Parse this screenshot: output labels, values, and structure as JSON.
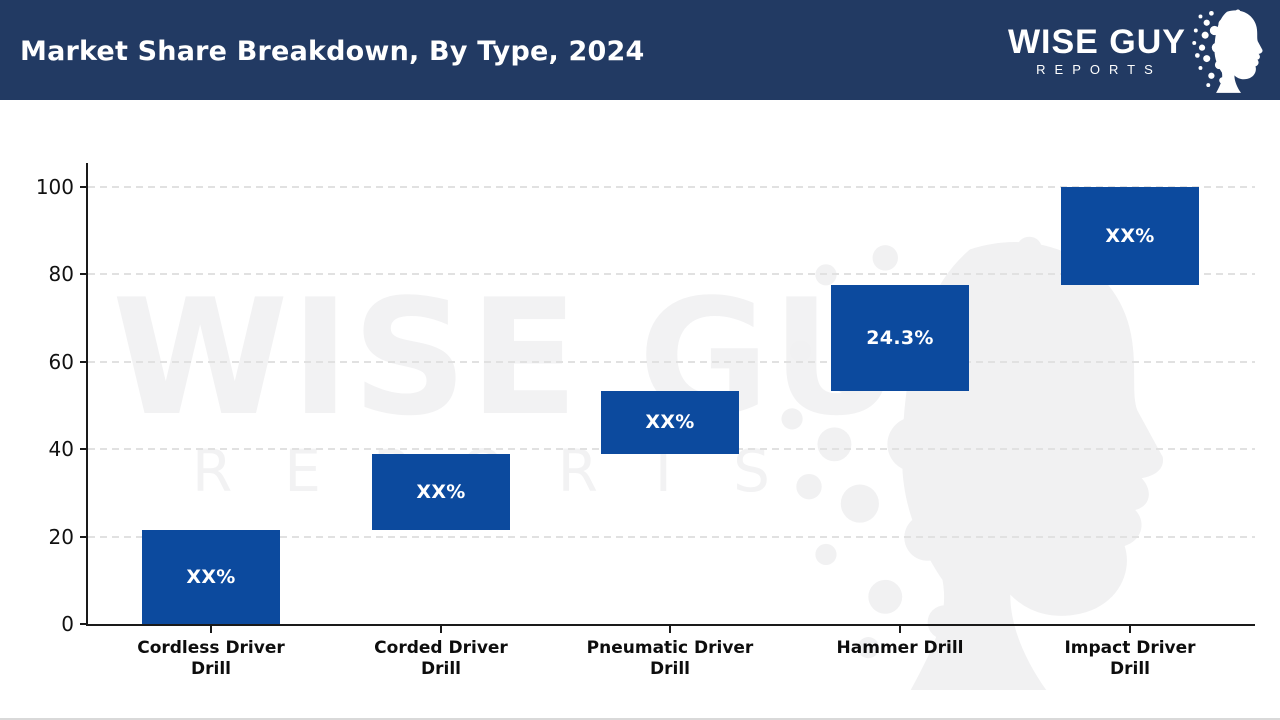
{
  "header": {
    "title": "Market Share Breakdown, By Type, 2024",
    "logo_line1": "WISE GUY",
    "logo_line2": "REPORTS"
  },
  "watermark": {
    "line1": "WISE GUY",
    "line2": "REPORTS"
  },
  "chart_data": {
    "type": "waterfall",
    "title": "Market Share Breakdown, By Type, 2024",
    "categories": [
      "Cordless Driver\nDrill",
      "Corded Driver\nDrill",
      "Pneumatic Driver\nDrill",
      "Hammer Drill",
      "Impact Driver\nDrill"
    ],
    "segments": [
      {
        "category": "Cordless Driver Drill",
        "start": 0,
        "end": 21.5,
        "label": "XX%"
      },
      {
        "category": "Corded Driver Drill",
        "start": 21.5,
        "end": 38.9,
        "label": "XX%"
      },
      {
        "category": "Pneumatic Driver Drill",
        "start": 38.9,
        "end": 53.3,
        "label": "XX%"
      },
      {
        "category": "Hammer Drill",
        "start": 53.3,
        "end": 77.6,
        "label": "24.3%",
        "value": 24.3
      },
      {
        "category": "Impact Driver Drill",
        "start": 77.6,
        "end": 100,
        "label": "XX%"
      }
    ],
    "yticks": [
      0,
      20,
      40,
      60,
      80,
      100
    ],
    "ylim": [
      0,
      100
    ],
    "grid": true,
    "gridline_style": "dashed",
    "legend": "none"
  },
  "colors": {
    "header_bg": "#223a63",
    "bar": "#0c4a9e",
    "axis": "#1a1a1a",
    "gridline": "#e1e1e1",
    "watermark": "#f2f2f3"
  }
}
